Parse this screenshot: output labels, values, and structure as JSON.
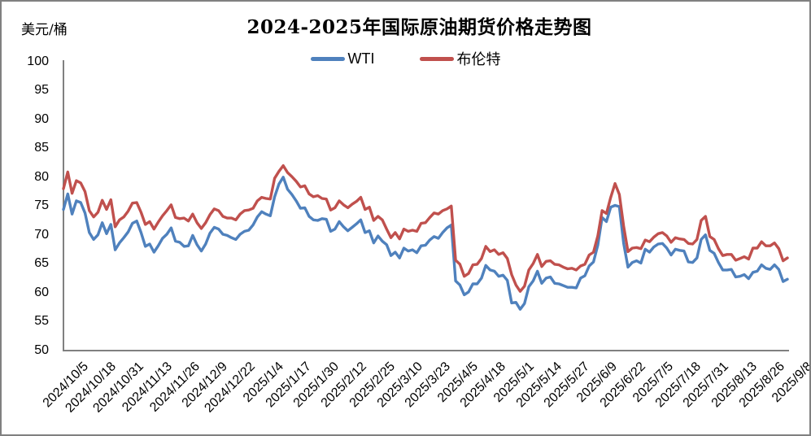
{
  "chart": {
    "title": "2024-2025年国际原油期货价格走势图",
    "unit_label": "美元/桶",
    "colors": {
      "wti": "#4F81BD",
      "brent": "#C0504D",
      "axis": "#808080",
      "border": "#808080"
    }
  },
  "chart_data": {
    "type": "line",
    "title": "2024-2025年国际原油期货价格走势图",
    "ylabel": "美元/桶",
    "xlabel": "",
    "ylim": [
      50,
      100
    ],
    "y_ticks": [
      100,
      95,
      90,
      85,
      80,
      75,
      70,
      65,
      60,
      55,
      50
    ],
    "grid": false,
    "legend_position": "top-center",
    "x_tick_labels": [
      "2024/10/5",
      "2024/10/18",
      "2024/10/31",
      "2024/11/13",
      "2024/11/26",
      "2024/12/9",
      "2024/12/22",
      "2025/1/4",
      "2025/1/17",
      "2025/1/30",
      "2025/2/12",
      "2025/2/25",
      "2025/3/10",
      "2025/3/23",
      "2025/4/5",
      "2025/4/18",
      "2025/5/1",
      "2025/5/14",
      "2025/5/27",
      "2025/6/9",
      "2025/6/22",
      "2025/7/5",
      "2025/7/18",
      "2025/7/31",
      "2025/8/13",
      "2025/8/26",
      "2025/9/8"
    ],
    "series": [
      {
        "name": "WTI",
        "color": "#4F81BD",
        "values": [
          74.4,
          77.1,
          73.6,
          75.9,
          75.6,
          73.8,
          70.4,
          69.2,
          70.0,
          72.1,
          70.2,
          71.8,
          67.4,
          68.6,
          69.5,
          70.5,
          72.0,
          72.4,
          70.4,
          68.0,
          68.4,
          67.0,
          68.1,
          69.4,
          70.1,
          71.2,
          68.9,
          68.7,
          68.0,
          68.1,
          69.9,
          68.3,
          67.2,
          68.4,
          70.3,
          71.3,
          71.0,
          70.1,
          69.9,
          69.5,
          69.2,
          70.1,
          70.6,
          70.8,
          71.7,
          73.1,
          74.0,
          73.6,
          73.3,
          76.6,
          78.8,
          80.0,
          77.9,
          77.0,
          75.9,
          74.6,
          74.7,
          73.2,
          72.6,
          72.5,
          72.8,
          72.7,
          70.6,
          71.0,
          72.3,
          71.4,
          70.7,
          71.3,
          71.9,
          72.6,
          70.4,
          70.7,
          68.6,
          69.8,
          68.9,
          68.3,
          66.4,
          67.0,
          66.0,
          67.7,
          67.2,
          67.4,
          66.9,
          68.1,
          68.2,
          69.1,
          69.7,
          69.4,
          70.4,
          71.2,
          71.7,
          62.0,
          61.3,
          59.6,
          60.1,
          61.5,
          61.5,
          62.5,
          64.7,
          63.9,
          63.7,
          62.8,
          63.0,
          62.1,
          58.2,
          58.3,
          57.1,
          58.1,
          61.0,
          62.0,
          63.7,
          61.6,
          62.5,
          62.7,
          61.6,
          61.5,
          61.2,
          60.9,
          60.9,
          60.8,
          62.5,
          62.9,
          64.6,
          65.3,
          68.2,
          73.0,
          72.3,
          74.8,
          75.1,
          74.9,
          68.5,
          64.4,
          65.2,
          65.5,
          65.1,
          67.5,
          67.0,
          67.9,
          68.4,
          68.5,
          67.7,
          66.5,
          67.5,
          67.3,
          67.2,
          65.3,
          65.2,
          66.0,
          69.2,
          70.0,
          67.3,
          66.8,
          65.2,
          63.9,
          63.9,
          64.0,
          62.7,
          62.8,
          63.1,
          62.4,
          63.5,
          63.7,
          64.8,
          64.2,
          64.0,
          64.8,
          64.0,
          61.9,
          62.3
        ]
      },
      {
        "name": "布伦特",
        "color": "#C0504D",
        "values": [
          78.0,
          80.9,
          77.2,
          79.4,
          79.0,
          77.5,
          74.2,
          73.1,
          73.9,
          76.0,
          74.4,
          76.1,
          71.4,
          72.6,
          73.1,
          74.1,
          75.5,
          75.6,
          73.9,
          71.8,
          72.3,
          71.0,
          72.2,
          73.3,
          74.2,
          75.2,
          73.0,
          72.8,
          72.9,
          72.4,
          73.6,
          72.1,
          71.1,
          72.1,
          73.5,
          74.5,
          74.2,
          73.2,
          72.9,
          72.9,
          72.6,
          73.6,
          74.2,
          74.3,
          74.6,
          75.9,
          76.5,
          76.3,
          76.2,
          79.8,
          81.0,
          82.0,
          80.8,
          80.1,
          79.3,
          78.3,
          78.5,
          77.1,
          76.6,
          76.8,
          76.3,
          76.2,
          74.3,
          74.7,
          75.9,
          75.2,
          74.7,
          75.3,
          75.8,
          76.5,
          74.4,
          74.8,
          72.5,
          73.2,
          72.6,
          71.0,
          69.5,
          70.4,
          69.3,
          71.0,
          70.6,
          70.8,
          70.6,
          72.0,
          72.1,
          73.0,
          73.8,
          73.6,
          74.2,
          74.5,
          75.0,
          65.6,
          64.9,
          62.8,
          63.3,
          64.8,
          64.9,
          65.9,
          68.0,
          67.1,
          67.4,
          66.6,
          66.9,
          65.9,
          63.1,
          61.3,
          60.2,
          61.1,
          63.9,
          65.0,
          66.6,
          64.5,
          65.4,
          65.5,
          64.9,
          64.8,
          64.4,
          64.1,
          64.2,
          63.9,
          64.6,
          64.9,
          66.5,
          67.0,
          69.8,
          74.2,
          73.7,
          76.5,
          78.9,
          77.0,
          71.5,
          67.1,
          67.7,
          67.8,
          67.6,
          69.1,
          68.8,
          69.6,
          70.2,
          70.4,
          69.8,
          68.7,
          69.5,
          69.3,
          69.2,
          68.5,
          68.4,
          69.2,
          72.5,
          73.2,
          69.7,
          69.2,
          67.6,
          66.4,
          66.6,
          66.6,
          65.6,
          65.9,
          66.2,
          65.8,
          67.7,
          67.7,
          68.8,
          68.1,
          68.1,
          68.6,
          67.6,
          65.5,
          66.0
        ]
      }
    ]
  }
}
